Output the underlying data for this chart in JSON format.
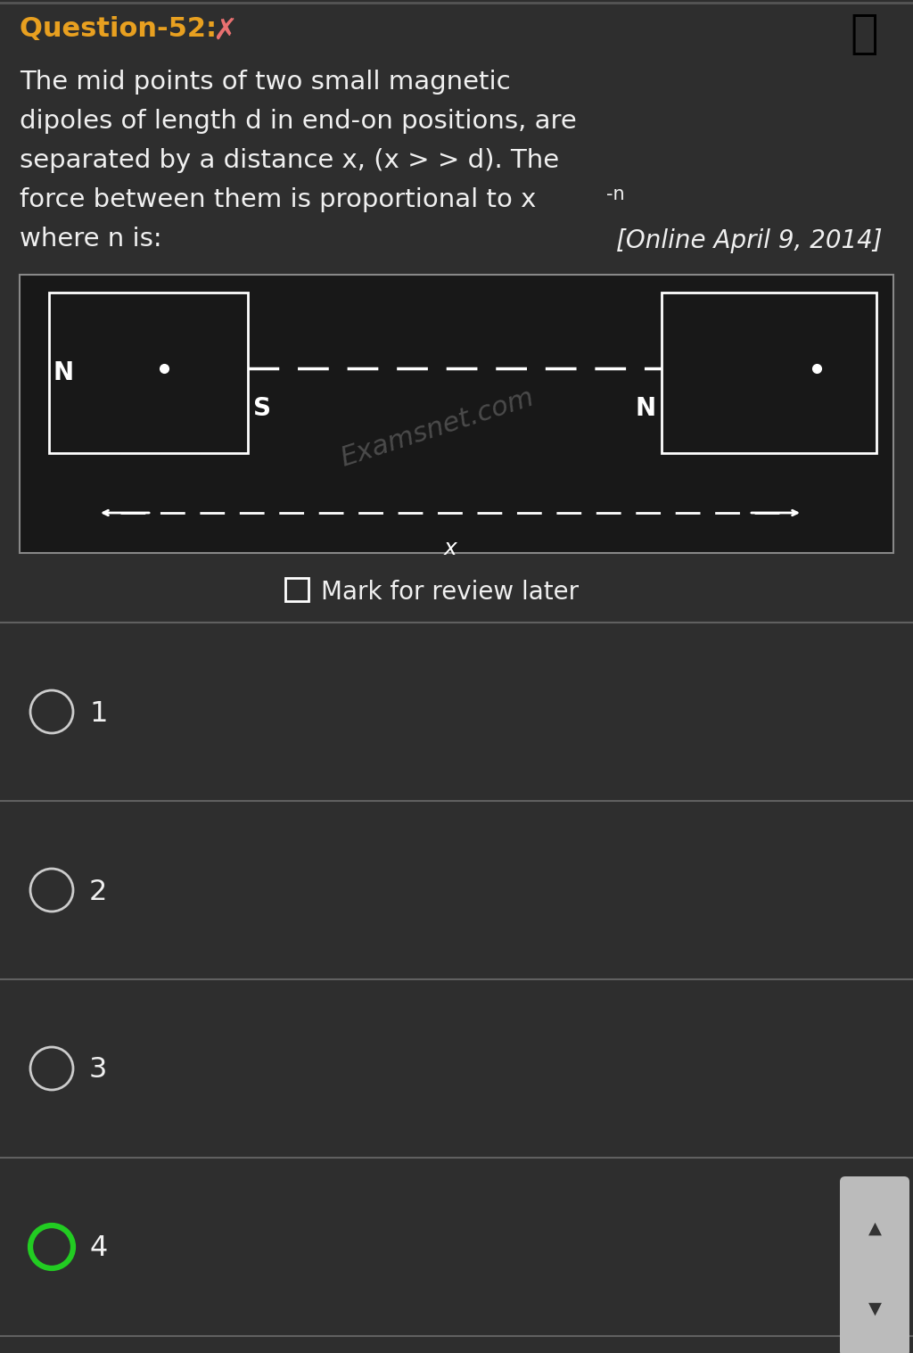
{
  "bg_color": "#2e2e2e",
  "question_label": "Question-52: ",
  "question_label_color": "#e8a020",
  "wrong_mark": "✗",
  "wrong_mark_color": "#e87070",
  "question_lines": [
    "The mid points of two small magnetic",
    "dipoles of length d in end-on positions, are",
    "separated by a distance x, (x > > d). The",
    "force between them is proportional to x",
    "where n is:"
  ],
  "superscript": "-n",
  "citation": "[Online April 9, 2014]",
  "text_color": "#f0f0f0",
  "diagram_bg": "#181818",
  "diagram_border": "#888888",
  "mark_review_text": "Mark for review later",
  "options": [
    "1",
    "2",
    "3",
    "4"
  ],
  "correct_option_idx": 3,
  "option_bg": "#2e2e2e",
  "divider_color": "#606060",
  "circle_color": "#cccccc",
  "selected_circle_color": "#22cc22",
  "watermark_text": "Examsnet.com",
  "watermark_color": "#666666",
  "scroll_bg": "#bbbbbb",
  "white": "#ffffff",
  "title_fontsize": 22,
  "body_fontsize": 21,
  "option_fontsize": 23
}
